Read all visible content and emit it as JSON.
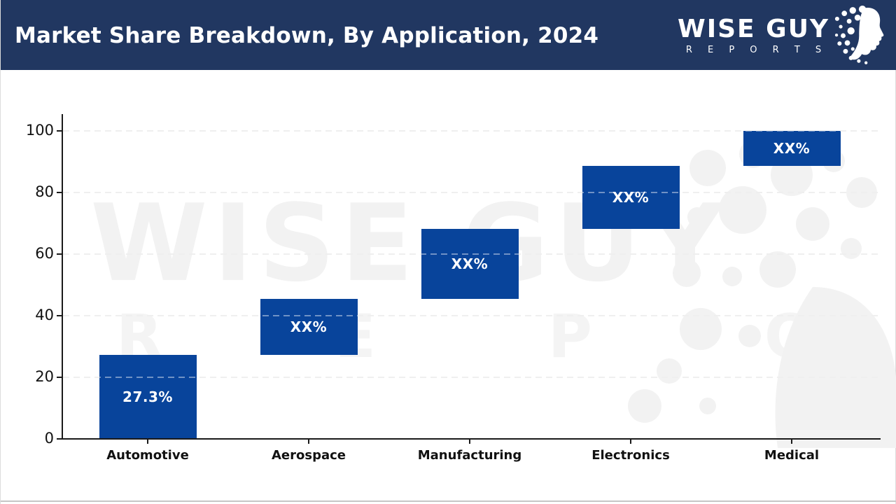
{
  "header": {
    "title": "Market Share Breakdown, By Application, 2024",
    "logo": {
      "line1": "WISE GUY",
      "line2": "R E P O R T S",
      "face_icon": "dotted-face-profile"
    }
  },
  "watermark": {
    "line1": "WISE GUY",
    "line2": "R E P O R T S"
  },
  "chart_data": {
    "type": "bar",
    "subtype": "waterfall",
    "title": "Market Share Breakdown, By Application, 2024",
    "categories": [
      "Automotive",
      "Aerospace",
      "Manufacturing",
      "Electronics",
      "Medical"
    ],
    "values": [
      27.3,
      18.2,
      22.7,
      20.4,
      11.4
    ],
    "labels": [
      "27.3%",
      "XX%",
      "XX%",
      "XX%",
      "XX%"
    ],
    "segments": [
      {
        "category": "Automotive",
        "start": 0,
        "end": 27.3,
        "label": "27.3%"
      },
      {
        "category": "Aerospace",
        "start": 27.3,
        "end": 45.5,
        "label": "XX%"
      },
      {
        "category": "Manufacturing",
        "start": 45.5,
        "end": 68.2,
        "label": "XX%"
      },
      {
        "category": "Electronics",
        "start": 68.2,
        "end": 88.6,
        "label": "XX%"
      },
      {
        "category": "Medical",
        "start": 88.6,
        "end": 100.0,
        "label": "XX%"
      }
    ],
    "xlabel": "",
    "ylabel": "",
    "ylim": [
      0,
      105
    ],
    "yticks": [
      0,
      20,
      40,
      60,
      80,
      100
    ],
    "grid": "horizontal-dashed",
    "legend": "none",
    "bar_color": "#08449b",
    "bar_label_color": "#ffffff"
  },
  "colors": {
    "header_bg": "#213761",
    "bar": "#08449b",
    "axis": "#1a1a1a",
    "gridline": "#e3e3e3",
    "watermark": "#f2f2f2",
    "page_bg": "#ffffff",
    "footer_rule": "#c6c6c6"
  }
}
